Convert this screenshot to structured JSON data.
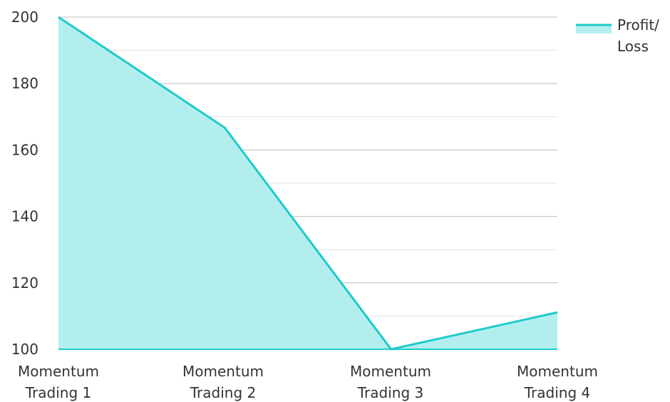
{
  "chart_data": {
    "type": "area",
    "categories": [
      [
        "Momentum",
        "Trading 1"
      ],
      [
        "Momentum",
        "Trading 2"
      ],
      [
        "Momentum",
        "Trading 3"
      ],
      [
        "Momentum",
        "Trading 4"
      ]
    ],
    "series": [
      {
        "name": "Profit/Loss",
        "legend_lines": [
          "Profit/",
          "Loss"
        ],
        "values": [
          200,
          166.7,
          100,
          111.1
        ],
        "line_color": "#1ecbcb",
        "fill_color": "#b3eeee"
      }
    ],
    "ylim": [
      100,
      200
    ],
    "yticks": [
      100,
      120,
      140,
      160,
      180,
      200
    ],
    "title": "",
    "xlabel": "",
    "ylabel": "",
    "grid": true,
    "legend_position": "top-right",
    "colors": {
      "major_grid": "#bcbcbc",
      "minor_grid": "#e3e3e3",
      "axis_line": "#1ecbcb",
      "text": "#333333"
    }
  }
}
